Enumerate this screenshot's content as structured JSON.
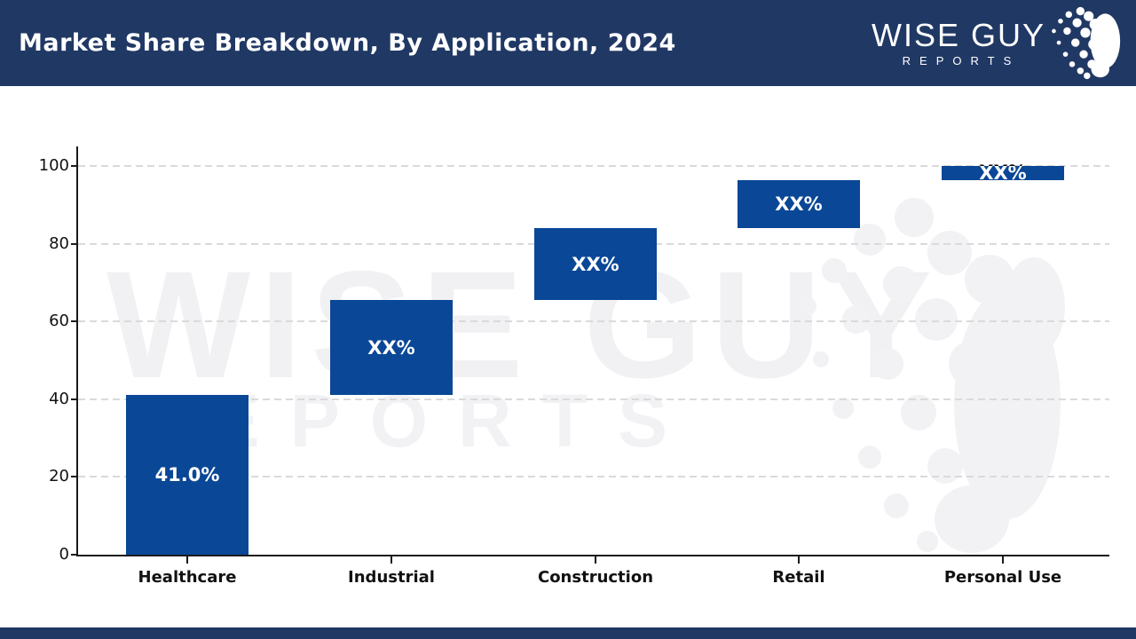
{
  "header": {
    "title": "Market Share Breakdown, By Application, 2024",
    "logo": {
      "line1": "WISE GUY",
      "line2": "REPORTS"
    }
  },
  "watermark": {
    "line1": "WISE GUY",
    "line2": "REPORTS"
  },
  "colors": {
    "navy": "#203864",
    "bar_blue": "#0a4796",
    "grid_gray": "#dadada",
    "watermark_gray": "#f1f1f4"
  },
  "chart_data": {
    "type": "bar",
    "subtype": "waterfall-floating-bars",
    "title": "Market Share Breakdown, By Application, 2024",
    "xlabel": "",
    "ylabel": "",
    "ylim": [
      0,
      105
    ],
    "yticks": [
      0,
      20,
      40,
      60,
      80,
      100
    ],
    "grid": "horizontal-dashed",
    "legend": false,
    "categories": [
      "Healthcare",
      "Industrial",
      "Construction",
      "Retail",
      "Personal Use"
    ],
    "segments": [
      {
        "category": "Healthcare",
        "start": 0,
        "end": 41,
        "label": "41.0%"
      },
      {
        "category": "Industrial",
        "start": 41,
        "end": 65.5,
        "label": "XX%"
      },
      {
        "category": "Construction",
        "start": 65.5,
        "end": 84,
        "label": "XX%"
      },
      {
        "category": "Retail",
        "start": 84,
        "end": 96.3,
        "label": "XX%"
      },
      {
        "category": "Personal Use",
        "start": 96.3,
        "end": 100,
        "label": "XX%"
      }
    ]
  }
}
